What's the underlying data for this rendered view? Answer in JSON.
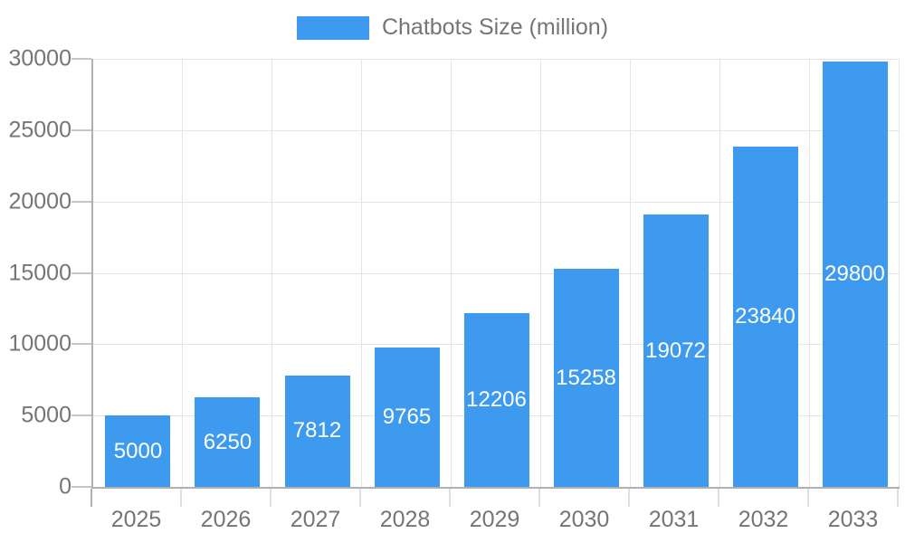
{
  "legend": {
    "label": "Chatbots Size (million)"
  },
  "colors": {
    "bar": "#3E9AEF",
    "axis_text": "#757575",
    "bar_label_text": "#ffffff",
    "axis_line": "#b0b0b0",
    "gridline": "#e5e5e5"
  },
  "chart_data": {
    "type": "bar",
    "series_name": "Chatbots Size (million)",
    "categories": [
      "2025",
      "2026",
      "2027",
      "2028",
      "2029",
      "2030",
      "2031",
      "2032",
      "2033"
    ],
    "values": [
      5000,
      6250,
      7812,
      9765,
      12206,
      15258,
      19072,
      23840,
      29800
    ],
    "value_labels_visible": true,
    "xlabel": "",
    "ylabel": "",
    "ylim": [
      0,
      30000
    ],
    "yticks": [
      0,
      5000,
      10000,
      15000,
      20000,
      25000,
      30000
    ],
    "grid": true,
    "legend_position": "top"
  }
}
